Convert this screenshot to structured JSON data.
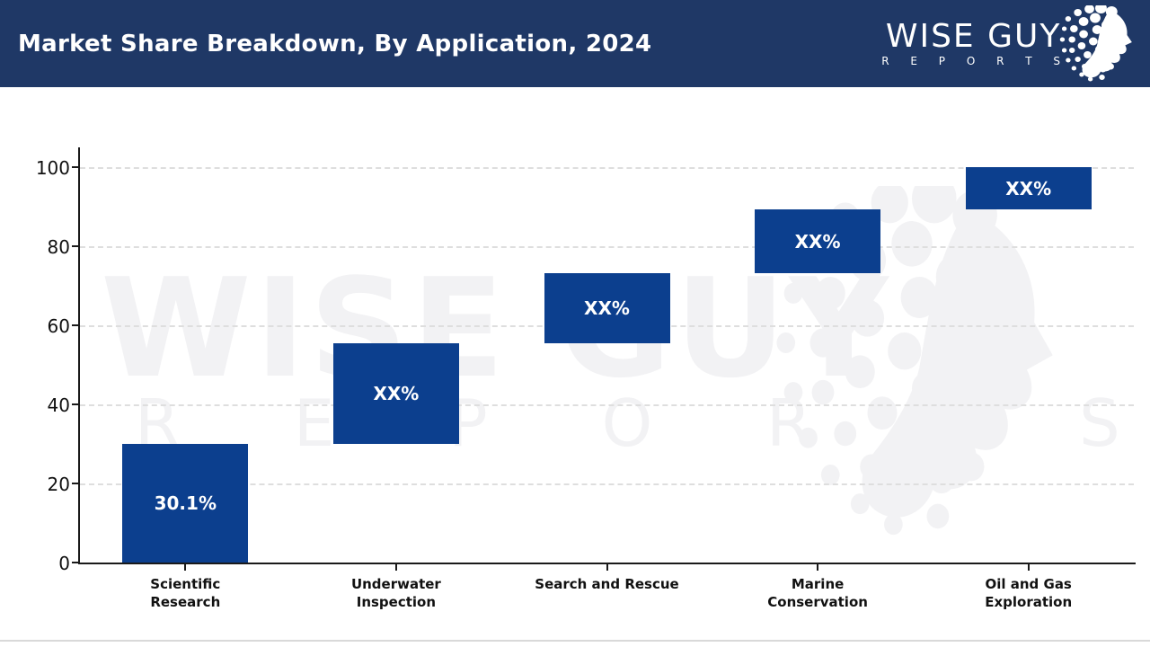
{
  "header": {
    "title": "Market Share Breakdown, By Application, 2024",
    "logo": {
      "line1": "WISE GUY",
      "line2": "R E P O R T S"
    }
  },
  "watermark": {
    "line1": "WISE GUY",
    "line2": "R E P O R T S"
  },
  "chart_data": {
    "type": "bar",
    "subtype": "waterfall",
    "title": "Market Share Breakdown, By Application, 2024",
    "categories": [
      "Scientific\nResearch",
      "Underwater\nInspection",
      "Search and Rescue",
      "Marine\nConservation",
      "Oil and Gas\nExploration"
    ],
    "series": [
      {
        "name": "Market Share",
        "segments": [
          {
            "from": 0,
            "to": 30.1,
            "label": "30.1%"
          },
          {
            "from": 30.1,
            "to": 55.4,
            "label": "XX%"
          },
          {
            "from": 55.4,
            "to": 73.1,
            "label": "XX%"
          },
          {
            "from": 73.1,
            "to": 89.3,
            "label": "XX%"
          },
          {
            "from": 89.3,
            "to": 100,
            "label": "XX%"
          }
        ]
      }
    ],
    "yticks": [
      0,
      20,
      40,
      60,
      80,
      100
    ],
    "ylim": [
      0,
      105
    ],
    "xlabel": "",
    "ylabel": "",
    "grid": "dashed-horizontal",
    "legend": "none",
    "bar_color": "#0c3f8e",
    "bar_label_color": "#ffffff",
    "header_color": "#1f3866"
  }
}
